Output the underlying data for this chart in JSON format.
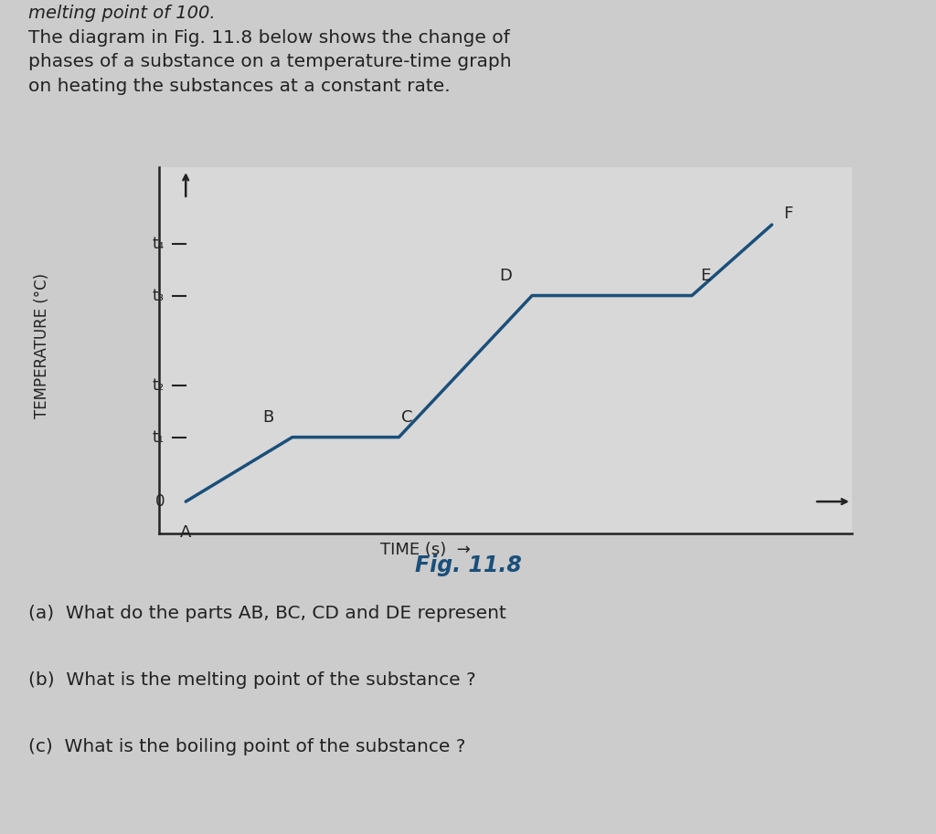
{
  "points": {
    "A": [
      0,
      0
    ],
    "B": [
      2,
      1
    ],
    "C": [
      4,
      1
    ],
    "D": [
      6.5,
      3.2
    ],
    "E": [
      9.5,
      3.2
    ],
    "F": [
      11,
      4.3
    ]
  },
  "ytick_labels": [
    "t₁",
    "t₂",
    "t₃",
    "t₄"
  ],
  "ytick_positions": [
    1,
    1.8,
    3.2,
    4.0
  ],
  "xlabel": "TIME (s)",
  "ylabel": "TEMPERATURE (°C)",
  "fig_label": "Fig. 11.8",
  "line_color": "#1a4f7a",
  "axis_color": "#222222",
  "plot_bg_color": "#d8d8d8",
  "page_bg_color": "#cccccc",
  "fig_label_color": "#1a4f7a",
  "text_color": "#222222",
  "line_width": 2.5,
  "questions": [
    "(a)  What do the parts AB, BC, CD and DE represent",
    "(b)  What is the melting point of the substance ?",
    "(c)  What is the boiling point of the substance ?"
  ],
  "header_line1": "The diagram in Fig. 11.8 below shows the change of",
  "header_line2": "phases of a substance on a temperature-time graph",
  "header_line3": "on heating the substances at a constant rate.",
  "top_partial_line": "melting point of 100."
}
